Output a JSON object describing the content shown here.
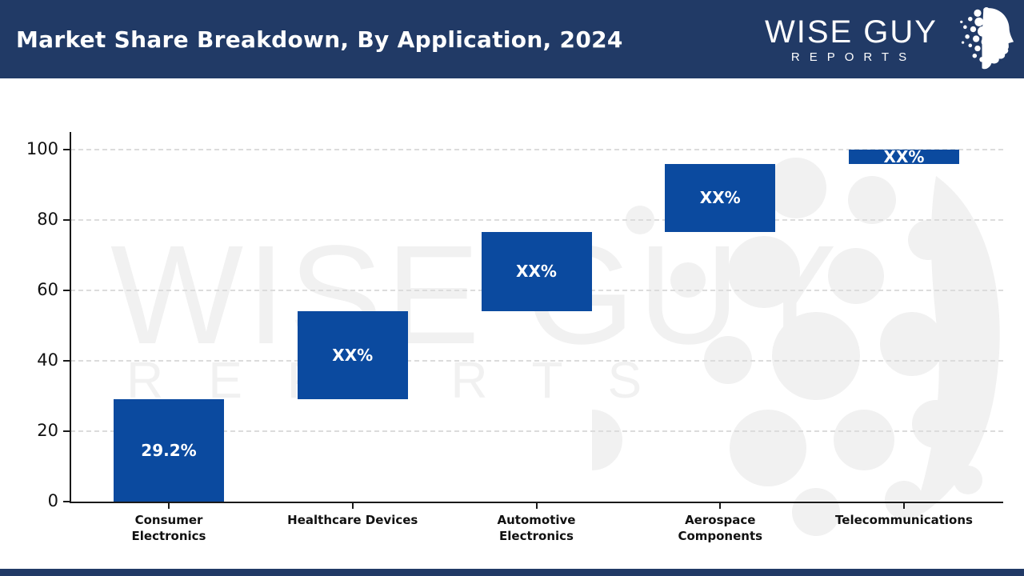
{
  "header": {
    "title": "Market Share Breakdown, By Application, 2024",
    "bg_color": "#213a66",
    "logo": {
      "wordmark": "WISE GUY",
      "subtext": "REPORTS"
    }
  },
  "watermark": {
    "wordmark": "WISE GUY",
    "subtext": "REPORTS"
  },
  "chart_data": {
    "type": "bar",
    "subtype": "waterfall",
    "title": "Market Share Breakdown, By Application, 2024",
    "categories": [
      "Consumer Electronics",
      "Healthcare Devices",
      "Automotive Electronics",
      "Aerospace Components",
      "Telecommunications"
    ],
    "category_lines": [
      [
        "Consumer",
        "Electronics"
      ],
      [
        "Healthcare Devices"
      ],
      [
        "Automotive",
        "Electronics"
      ],
      [
        "Aerospace",
        "Components"
      ],
      [
        "Telecommunications"
      ]
    ],
    "segments": [
      {
        "category": "Consumer Electronics",
        "start": 0,
        "end": 29.2,
        "label": "29.2%"
      },
      {
        "category": "Healthcare Devices",
        "start": 29.2,
        "end": 54.2,
        "label": "XX%"
      },
      {
        "category": "Automotive Electronics",
        "start": 54.2,
        "end": 76.6,
        "label": "XX%"
      },
      {
        "category": "Aerospace Components",
        "start": 76.6,
        "end": 95.9,
        "label": "XX%"
      },
      {
        "category": "Telecommunications",
        "start": 95.9,
        "end": 100.0,
        "label": "XX%"
      }
    ],
    "xlabel": "",
    "ylabel": "",
    "ylim": [
      0,
      105
    ],
    "yticks": [
      0,
      20,
      40,
      60,
      80,
      100
    ],
    "grid": true,
    "grid_axis": "y",
    "grid_style": "dashed",
    "legend": false,
    "bar_color": "#0b4a9f",
    "bar_label_color": "#ffffff",
    "axis_color": "#1a1a1a",
    "grid_color": "#dcdcdc",
    "watermark_color": "#f1f1f1"
  }
}
